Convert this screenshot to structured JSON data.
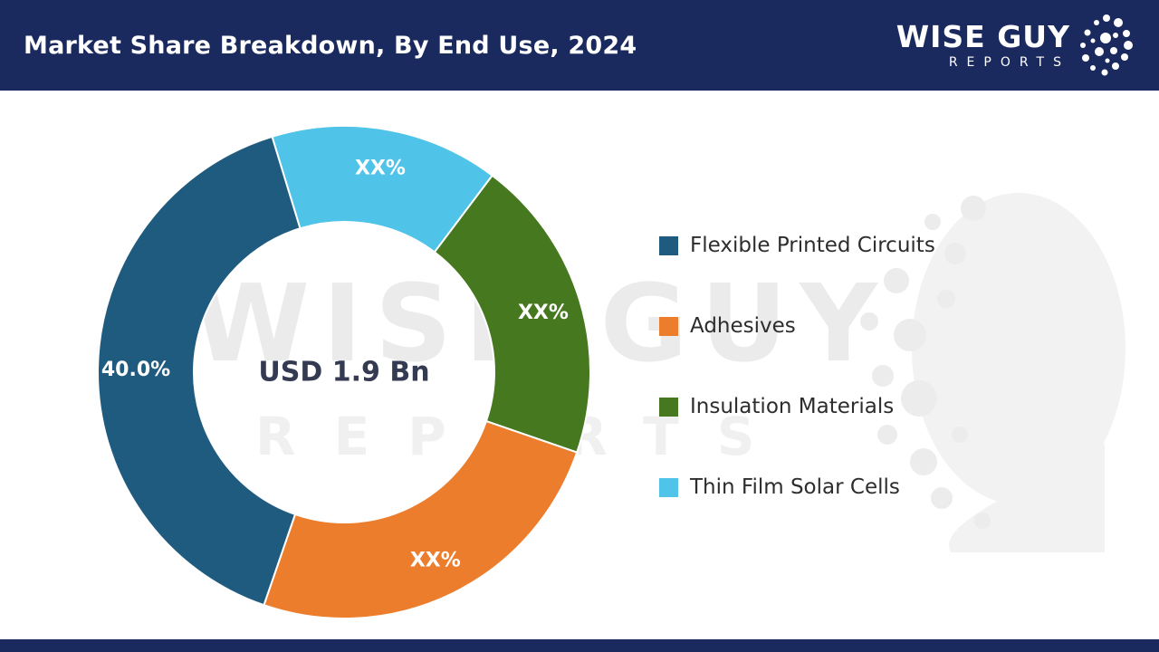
{
  "header": {
    "title": "Market Share Breakdown, By End Use, 2024",
    "logo": {
      "line1": "WISE GUY",
      "line2": "REPORTS"
    }
  },
  "watermark": {
    "line1": "WISE GUY",
    "line2": "REPORTS"
  },
  "chart_data": {
    "type": "pie",
    "subtype": "donut",
    "title": "Market Share Breakdown, By End Use, 2024",
    "center_label": "USD 1.9 Bn",
    "start_angle_deg": 343,
    "segments": [
      {
        "label": "Thin Film Solar Cells",
        "pct": 15,
        "display": "XX%",
        "color": "#4fc3e8"
      },
      {
        "label": "Insulation Materials",
        "pct": 20,
        "display": "XX%",
        "color": "#45781f"
      },
      {
        "label": "Adhesives",
        "pct": 25,
        "display": "XX%",
        "color": "#ec7d2d"
      },
      {
        "label": "Flexible Printed Circuits",
        "pct": 40,
        "display": "40.0%",
        "color": "#1f5b7e"
      }
    ],
    "legend": [
      {
        "label": "Flexible Printed Circuits",
        "color": "#1f5b7e"
      },
      {
        "label": "Adhesives",
        "color": "#ec7d2d"
      },
      {
        "label": "Insulation Materials",
        "color": "#45781f"
      },
      {
        "label": "Thin Film Solar Cells",
        "color": "#4fc3e8"
      }
    ],
    "legend_position": "right"
  }
}
